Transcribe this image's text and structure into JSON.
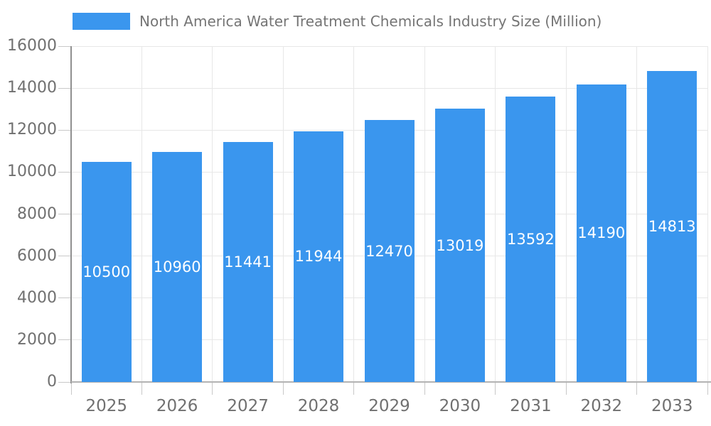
{
  "chart_data": {
    "type": "bar",
    "title": "North America Water Treatment Chemicals Industry Size (Million)",
    "categories": [
      "2025",
      "2026",
      "2027",
      "2028",
      "2029",
      "2030",
      "2031",
      "2032",
      "2033"
    ],
    "series": [
      {
        "name": "North America Water Treatment Chemicals Industry Size (Million)",
        "values": [
          10500,
          10960,
          11441,
          11944,
          12470,
          13019,
          13592,
          14190,
          14813
        ]
      }
    ],
    "bar_value_labels": [
      "10500",
      "10960",
      "11441",
      "11944",
      "12470",
      "13019",
      "13592",
      "14190",
      "14813"
    ],
    "xlabel": "",
    "ylabel": "",
    "ylim": [
      0,
      16000
    ],
    "y_ticks": [
      0,
      2000,
      4000,
      6000,
      8000,
      10000,
      12000,
      14000,
      16000
    ],
    "grid": true,
    "legend_position": "top",
    "colors": {
      "bar": "#3a96ee",
      "grid_line": "#e7e7e7",
      "tick_line": "#c8c8c8",
      "x_axis_line": "#b3b3b3",
      "y_axis_line": "#909090",
      "axis_text": "#707070",
      "legend_text": "#757575",
      "bar_label_text": "#ffffff"
    }
  }
}
